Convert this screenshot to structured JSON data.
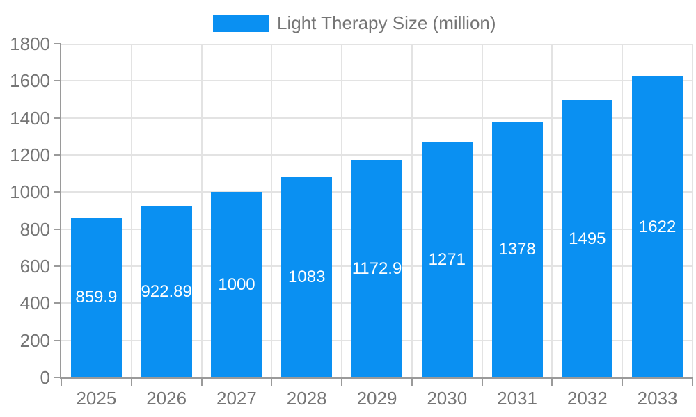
{
  "legend": {
    "label": "Light Therapy Size (million)"
  },
  "colors": {
    "bar": "#0A90F2",
    "grid": "#E3E3E3",
    "axis": "#9A9A9A",
    "axis_label": "#757575",
    "legend_label": "#757575",
    "value_label": "#FFFFFF",
    "background": "#FFFFFF"
  },
  "chart_data": {
    "type": "bar",
    "title": "Light Therapy Size (million)",
    "categories": [
      "2025",
      "2026",
      "2027",
      "2028",
      "2029",
      "2030",
      "2031",
      "2032",
      "2033"
    ],
    "series": [
      {
        "name": "Light Therapy Size (million)",
        "values": [
          859.9,
          922.89,
          1000,
          1083,
          1172.9,
          1271,
          1378,
          1495,
          1622
        ],
        "labels": [
          "859.9",
          "922.89",
          "1000",
          "1083",
          "1172.9",
          "1271",
          "1378",
          "1495",
          "1622"
        ]
      }
    ],
    "xlabel": "",
    "ylabel": "",
    "ylim": [
      0,
      1800
    ],
    "yticks": [
      0,
      200,
      400,
      600,
      800,
      1000,
      1200,
      1400,
      1600,
      1800
    ],
    "grid": "both",
    "legend_position": "top-center",
    "value_labels_position": "inside-middle"
  }
}
